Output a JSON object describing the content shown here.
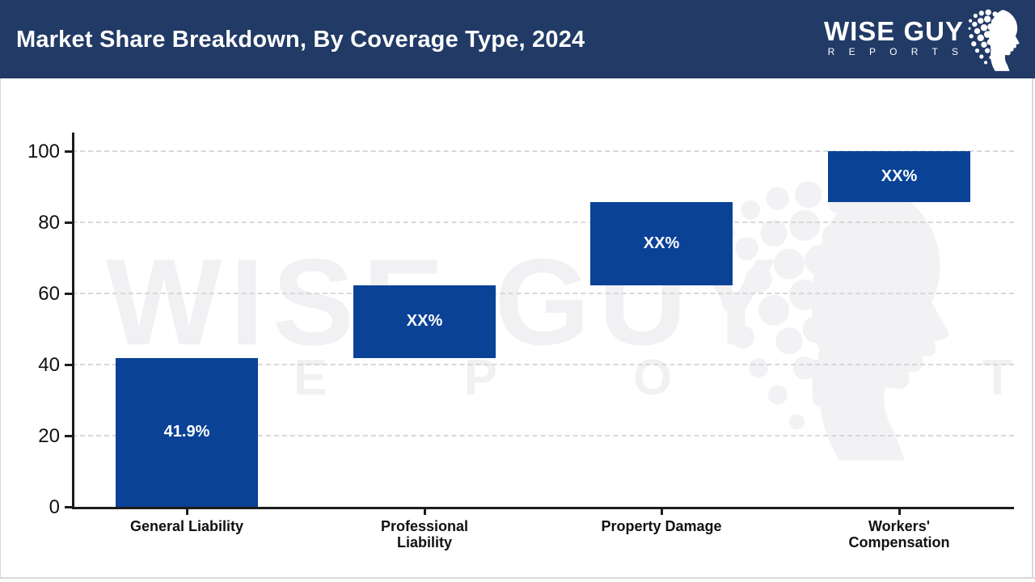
{
  "header": {
    "title": "Market Share Breakdown, By Coverage Type, 2024",
    "logo": {
      "line1": "WISE GUY",
      "line2": "R E P O R T S"
    }
  },
  "watermark": {
    "line1": "WISE GUY",
    "line2": "R E P O R T S"
  },
  "chart_data": {
    "type": "bar",
    "subtype": "waterfall",
    "title": "Market Share Breakdown, By Coverage Type, 2024",
    "categories": [
      "General Liability",
      "Professional\nLiability",
      "Property Damage",
      "Workers'\nCompensation"
    ],
    "bars": [
      {
        "from": 0,
        "to": 41.9,
        "label": "41.9%"
      },
      {
        "from": 41.9,
        "to": 62.3,
        "label": "XX%"
      },
      {
        "from": 62.3,
        "to": 85.7,
        "label": "XX%"
      },
      {
        "from": 85.7,
        "to": 100,
        "label": "XX%"
      }
    ],
    "xlabel": "",
    "ylabel": "",
    "ylim": [
      0,
      100
    ],
    "yticks": [
      0,
      20,
      40,
      60,
      80,
      100
    ],
    "grid": true,
    "gridline_style": "dashed",
    "legend": "none"
  },
  "colors": {
    "header_bg": "#213a66",
    "bar": "#0a4296",
    "bar_label": "#ffffff",
    "axis": "#1c1c1c",
    "grid": "#d8d8d8",
    "watermark": "#f1f1f4"
  },
  "icons": {
    "logo_face": "dotted-head-profile-icon"
  }
}
